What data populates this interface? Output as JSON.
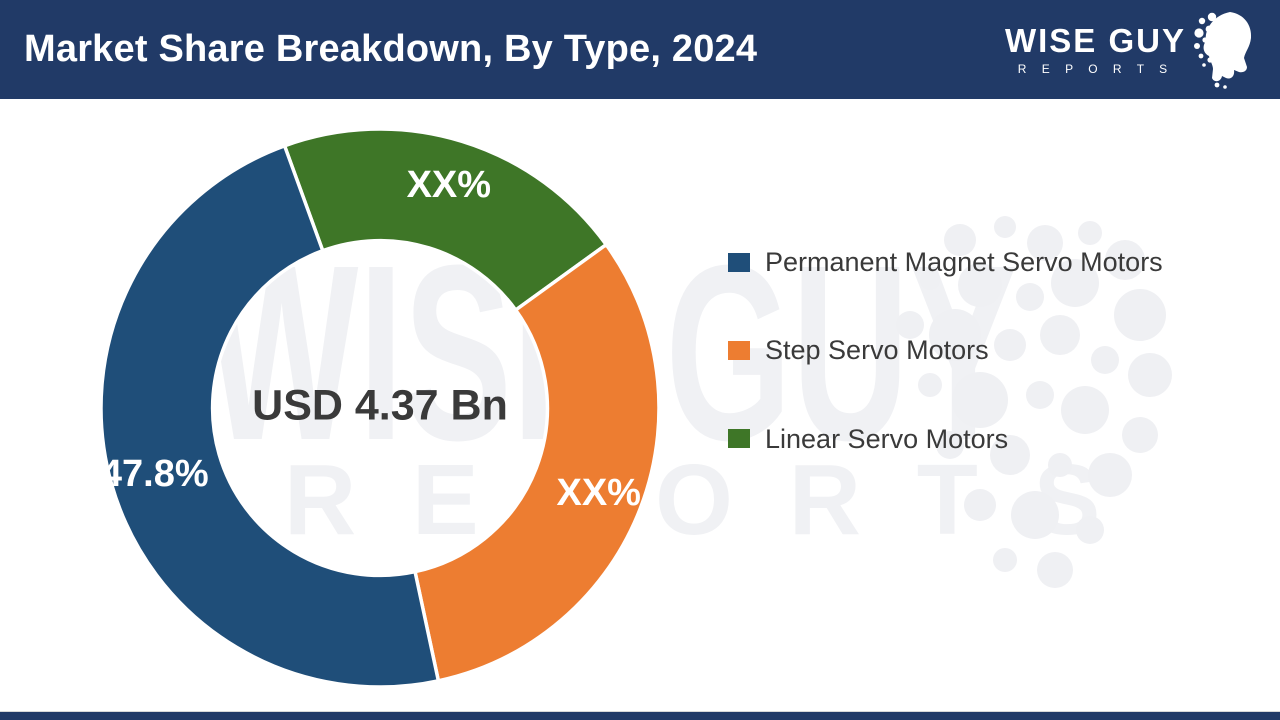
{
  "header": {
    "title": "Market Share Breakdown, By Type, 2024",
    "background_color": "#213A67",
    "logo": {
      "line1": "WISE GUY",
      "line2": "R E P O R T S"
    }
  },
  "watermark": {
    "line1": "WISE GUY",
    "line2": "R E P O R T S"
  },
  "chart_data": {
    "type": "pie",
    "variant": "donut",
    "title": "Market Share Breakdown, By Type, 2024",
    "center_label": "USD 4.37 Bn",
    "legend_position": "right",
    "start_angle_deg": 110,
    "direction": "clockwise",
    "inner_radius_ratio": 0.6,
    "slices": [
      {
        "name": "Linear Servo Motors",
        "color": "#3E7627",
        "displayed_label": "XX%",
        "percent_estimated": 20.6
      },
      {
        "name": "Step Servo Motors",
        "color": "#ED7D31",
        "displayed_label": "XX%",
        "percent_estimated": 31.6
      },
      {
        "name": "Permanent Magnet Servo Motors",
        "color": "#1F4E79",
        "displayed_label": "47.8%",
        "percent_estimated": 47.8
      }
    ]
  },
  "legend": {
    "items": [
      {
        "label": "Permanent Magnet Servo Motors"
      },
      {
        "label": "Step Servo Motors"
      },
      {
        "label": "Linear Servo Motors"
      }
    ]
  }
}
